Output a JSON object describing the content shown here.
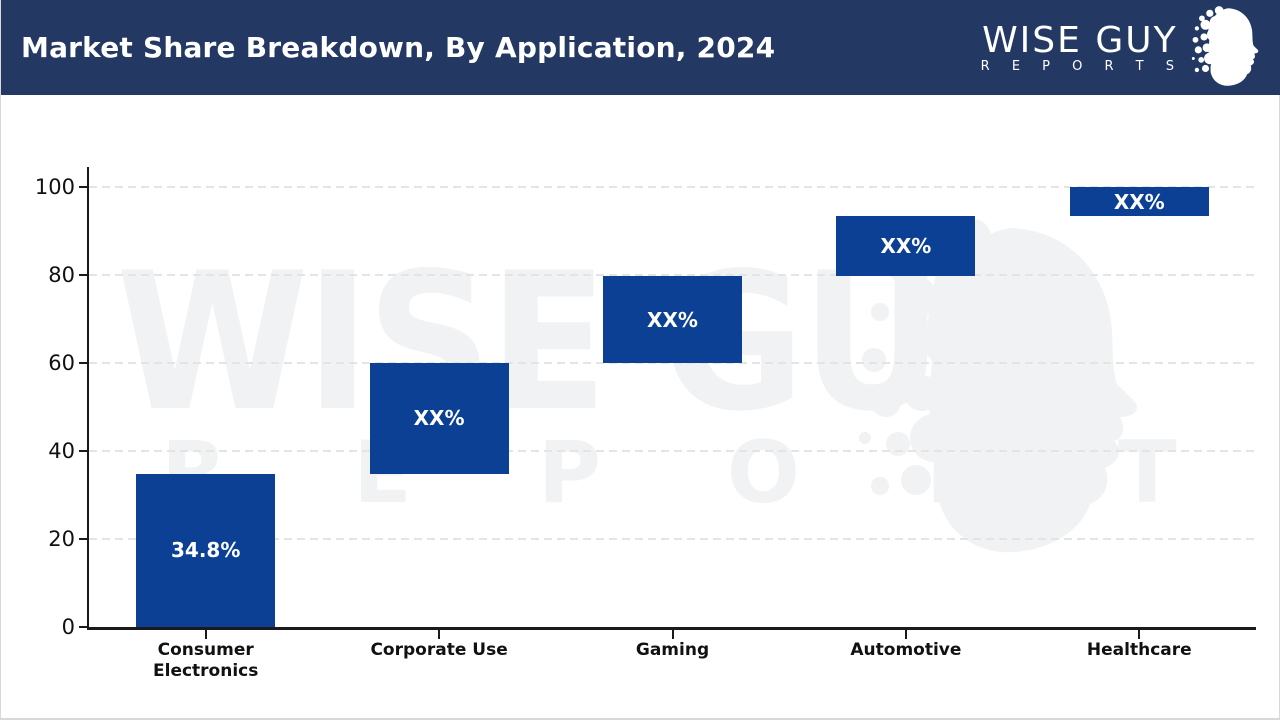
{
  "header": {
    "title": "Market Share Breakdown, By Application, 2024",
    "logo": {
      "line1": "WISE GUY",
      "line2": "REPORTS"
    }
  },
  "watermark": {
    "line1": "WISE GUY",
    "line2": "REPORTS"
  },
  "colors": {
    "header_bg": "#233863",
    "bar": "#0b4094",
    "grid": "#e4e4e4",
    "axis": "#1a1a1a",
    "title_text": "#ffffff",
    "watermark": "#f1f2f4"
  },
  "chart_data": {
    "type": "bar",
    "subtype": "waterfall",
    "title": "Market Share Breakdown, By Application, 2024",
    "categories": [
      "Consumer Electronics",
      "Corporate Use",
      "Gaming",
      "Automotive",
      "Healthcare"
    ],
    "segments": [
      {
        "category": "Consumer Electronics",
        "start": 0,
        "end": 34.8,
        "label": "34.8%"
      },
      {
        "category": "Corporate Use",
        "start": 34.8,
        "end": 60,
        "label": "XX%"
      },
      {
        "category": "Gaming",
        "start": 60,
        "end": 79.7,
        "label": "XX%"
      },
      {
        "category": "Automotive",
        "start": 79.7,
        "end": 93.4,
        "label": "XX%"
      },
      {
        "category": "Healthcare",
        "start": 93.4,
        "end": 100,
        "label": "XX%"
      }
    ],
    "y_ticks": [
      0,
      20,
      40,
      60,
      80,
      100
    ],
    "ylim": [
      0,
      105
    ],
    "xlabel": "",
    "ylabel": "",
    "grid": "horizontal-dashed",
    "legend": "none",
    "bar_value_labels_inside": true
  }
}
